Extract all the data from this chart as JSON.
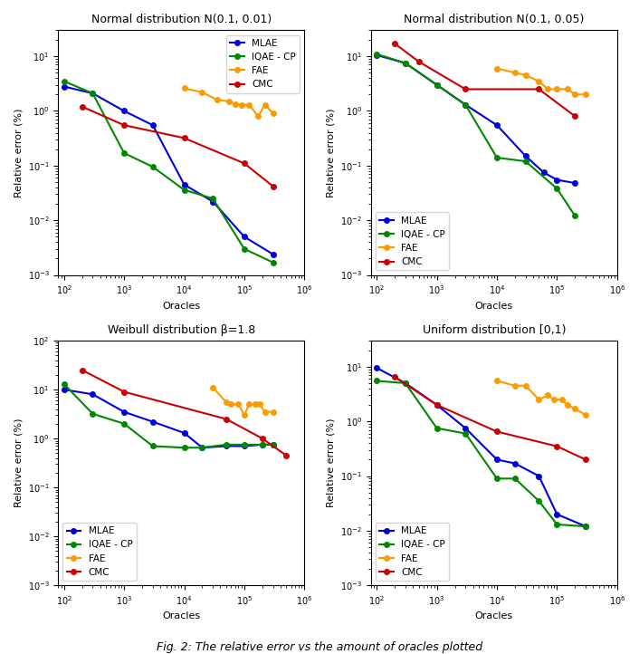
{
  "plots": [
    {
      "title": "Normal distribution N(0.1, 0.01)",
      "MLAE": {
        "x": [
          100,
          300,
          1000,
          3000,
          10000,
          30000,
          100000,
          300000
        ],
        "y": [
          2.8,
          2.1,
          1.0,
          0.55,
          0.045,
          0.022,
          0.005,
          0.0024
        ]
      },
      "IQAE_CP": {
        "x": [
          100,
          300,
          1000,
          3000,
          10000,
          30000,
          100000,
          300000
        ],
        "y": [
          3.5,
          2.1,
          0.17,
          0.095,
          0.036,
          0.025,
          0.003,
          0.0017
        ]
      },
      "FAE": {
        "x": [
          10000,
          20000,
          35000,
          55000,
          70000,
          90000,
          120000,
          170000,
          220000,
          300000
        ],
        "y": [
          2.6,
          2.2,
          1.6,
          1.5,
          1.35,
          1.3,
          1.3,
          0.8,
          1.3,
          0.9
        ]
      },
      "CMC": {
        "x": [
          200,
          1000,
          10000,
          100000,
          300000
        ],
        "y": [
          1.2,
          0.55,
          0.32,
          0.11,
          0.042
        ]
      },
      "legend_loc": "upper right",
      "xlim": [
        80,
        1000000
      ],
      "ylim": [
        0.001,
        30
      ]
    },
    {
      "title": "Normal distribution N(0.1, 0.05)",
      "MLAE": {
        "x": [
          100,
          300,
          1000,
          3000,
          10000,
          30000,
          60000,
          100000,
          200000
        ],
        "y": [
          10.5,
          7.5,
          3.0,
          1.3,
          0.55,
          0.15,
          0.075,
          0.055,
          0.048
        ]
      },
      "IQAE_CP": {
        "x": [
          100,
          300,
          1000,
          3000,
          10000,
          30000,
          100000,
          200000
        ],
        "y": [
          11.0,
          7.5,
          3.0,
          1.3,
          0.14,
          0.12,
          0.038,
          0.012
        ]
      },
      "FAE": {
        "x": [
          10000,
          20000,
          30000,
          50000,
          70000,
          100000,
          150000,
          200000,
          300000
        ],
        "y": [
          6.0,
          5.0,
          4.5,
          3.5,
          2.5,
          2.5,
          2.5,
          2.0,
          2.0
        ]
      },
      "CMC": {
        "x": [
          200,
          500,
          3000,
          50000,
          200000
        ],
        "y": [
          17.0,
          8.0,
          2.5,
          2.5,
          0.8
        ]
      },
      "legend_loc": "lower left",
      "xlim": [
        80,
        1000000
      ],
      "ylim": [
        0.001,
        30
      ]
    },
    {
      "title": "Weibull distribution β=1.8",
      "MLAE": {
        "x": [
          100,
          300,
          1000,
          3000,
          10000,
          20000,
          50000,
          100000,
          200000,
          300000
        ],
        "y": [
          10.0,
          8.0,
          3.5,
          2.2,
          1.3,
          0.65,
          0.7,
          0.7,
          0.75,
          0.75
        ]
      },
      "IQAE_CP": {
        "x": [
          100,
          300,
          1000,
          3000,
          10000,
          20000,
          50000,
          100000,
          200000,
          300000
        ],
        "y": [
          13.0,
          3.2,
          2.0,
          0.7,
          0.65,
          0.65,
          0.75,
          0.75,
          0.75,
          0.75
        ]
      },
      "FAE": {
        "x": [
          30000,
          50000,
          60000,
          80000,
          100000,
          120000,
          150000,
          180000,
          220000,
          300000
        ],
        "y": [
          11.0,
          5.5,
          5.0,
          5.0,
          3.0,
          5.0,
          5.0,
          5.0,
          3.5,
          3.5
        ]
      },
      "CMC": {
        "x": [
          200,
          1000,
          50000,
          200000,
          500000
        ],
        "y": [
          25.0,
          9.0,
          2.5,
          1.0,
          0.45
        ]
      },
      "legend_loc": "lower left",
      "xlim": [
        80,
        1000000
      ],
      "ylim": [
        0.001,
        100
      ]
    },
    {
      "title": "Uniform distribution [0,1)",
      "MLAE": {
        "x": [
          100,
          300,
          1000,
          3000,
          10000,
          20000,
          50000,
          100000,
          300000
        ],
        "y": [
          9.5,
          5.0,
          2.0,
          0.75,
          0.2,
          0.17,
          0.1,
          0.02,
          0.012
        ]
      },
      "IQAE_CP": {
        "x": [
          100,
          300,
          1000,
          3000,
          10000,
          20000,
          50000,
          100000,
          300000
        ],
        "y": [
          5.5,
          5.0,
          0.75,
          0.6,
          0.09,
          0.09,
          0.035,
          0.013,
          0.012
        ]
      },
      "FAE": {
        "x": [
          10000,
          20000,
          30000,
          50000,
          70000,
          90000,
          120000,
          150000,
          200000,
          300000
        ],
        "y": [
          5.5,
          4.5,
          4.5,
          2.5,
          3.0,
          2.5,
          2.5,
          2.0,
          1.7,
          1.3
        ]
      },
      "CMC": {
        "x": [
          200,
          1000,
          10000,
          100000,
          300000
        ],
        "y": [
          6.5,
          2.0,
          0.65,
          0.35,
          0.2
        ]
      },
      "legend_loc": "lower left",
      "xlim": [
        80,
        1000000
      ],
      "ylim": [
        0.001,
        30
      ]
    }
  ],
  "colors": {
    "MLAE": "#0000dd",
    "IQAE_CP": "#008800",
    "FAE": "#ff9900",
    "CMC": "#cc0000"
  },
  "legend_labels": {
    "MLAE": "MLAE",
    "IQAE_CP": "IQAE - CP",
    "FAE": "FAE",
    "CMC": "CMC"
  },
  "ylabel": "Relative error (%)",
  "xlabel": "Oracles",
  "figure_caption": "Fig. 2: The relative error vs the amount of oracles plotted"
}
